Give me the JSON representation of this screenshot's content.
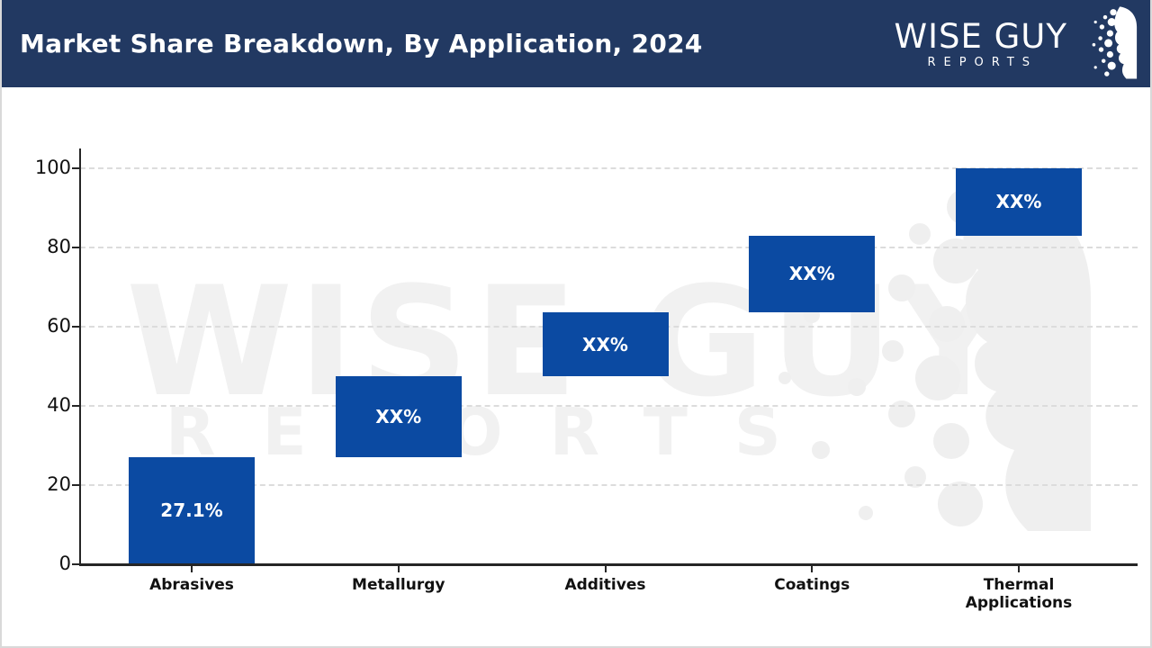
{
  "header": {
    "title": "Market Share Breakdown, By Application, 2024",
    "bg_color": "#223962",
    "logo": {
      "line1": "WISE GUY",
      "line2": "REPORTS"
    }
  },
  "watermark": {
    "line1": "WISE GUY",
    "line2": "REPORTS"
  },
  "chart_data": {
    "type": "bar",
    "subtype": "waterfall",
    "title": "Market Share Breakdown, By Application, 2024",
    "xlabel": "",
    "ylabel": "",
    "ylim": [
      0,
      100
    ],
    "yticks": [
      0,
      20,
      40,
      60,
      80,
      100
    ],
    "grid": true,
    "legend": false,
    "bar_color": "#0b4aa2",
    "bar_label_color": "#ffffff",
    "categories": [
      "Abrasives",
      "Metallurgy",
      "Additives",
      "Coatings",
      "Thermal Applications"
    ],
    "segments": [
      {
        "category": "Abrasives",
        "start": 0,
        "end": 27.1,
        "value": 27.1,
        "label": "27.1%"
      },
      {
        "category": "Metallurgy",
        "start": 27.1,
        "end": 47.5,
        "value": 20.4,
        "label": "XX%"
      },
      {
        "category": "Additives",
        "start": 47.5,
        "end": 63.6,
        "value": 16.1,
        "label": "XX%"
      },
      {
        "category": "Coatings",
        "start": 63.6,
        "end": 83.0,
        "value": 19.4,
        "label": "XX%"
      },
      {
        "category": "Thermal Applications",
        "start": 83.0,
        "end": 100.0,
        "value": 17.0,
        "label": "XX%"
      }
    ]
  }
}
